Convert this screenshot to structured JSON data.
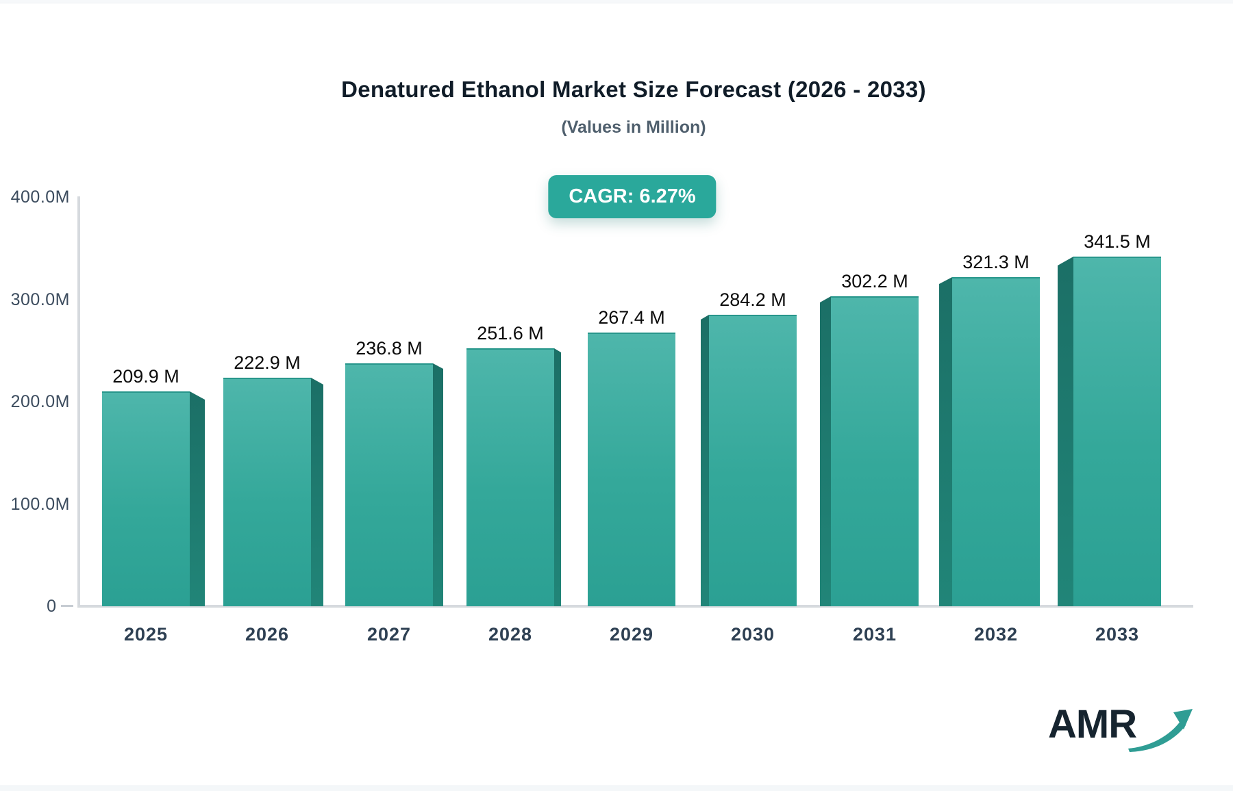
{
  "header": {
    "title": "Denatured Ethanol Market Size Forecast (2026 - 2033)",
    "subtitle": "(Values in Million)",
    "cagr_label": "CAGR: 6.27%"
  },
  "chart_data": {
    "type": "bar",
    "title": "Denatured Ethanol Market Size Forecast (2026 - 2033)",
    "subtitle": "(Values in Million)",
    "unit": "Million",
    "cagr_percent": 6.27,
    "categories": [
      "2025",
      "2026",
      "2027",
      "2028",
      "2029",
      "2030",
      "2031",
      "2032",
      "2033"
    ],
    "values": [
      209.9,
      222.9,
      236.8,
      251.6,
      267.4,
      284.2,
      302.2,
      321.3,
      341.5
    ],
    "bar_labels": [
      "209.9 M",
      "222.9 M",
      "236.8 M",
      "251.6 M",
      "267.4 M",
      "284.2 M",
      "302.2 M",
      "321.3 M",
      "341.5 M"
    ],
    "y_ticks": [
      "400.0M",
      "300.0M",
      "200.0M",
      "100.0M",
      "0"
    ],
    "ylim": [
      0,
      400
    ],
    "xlabel": "",
    "ylabel": "",
    "grid": false,
    "legend": false,
    "colors": {
      "bar_top": "#4eb6ab",
      "bar_bottom": "#2ba093",
      "bar_side_face": "#1e7a6f",
      "axis_line": "#d6dade",
      "value_label": "#0b0b0b",
      "tick_label": "#3c4c5e",
      "accent_badge": "#2aa89b"
    }
  },
  "logo": {
    "text": "AMR",
    "arrow_color": "#2f9d94"
  }
}
